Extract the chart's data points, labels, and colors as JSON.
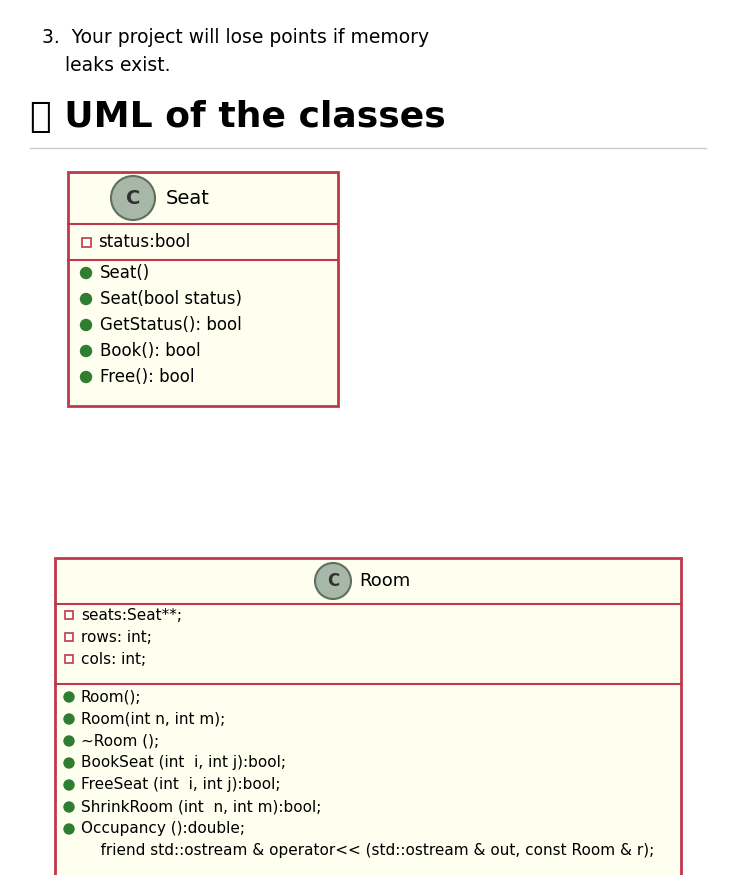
{
  "bg_color": "#ffffff",
  "box_bg": "#fffff0",
  "box_border": "#c0384b",
  "circle_bg": "#a8b8a8",
  "circle_border": "#607060",
  "attr_square_color": "#c0384b",
  "method_dot_color": "#2e7d32",
  "font_family": "DejaVu Sans",
  "header_text_line1": "3.  Your project will lose points if memory",
  "header_text_line2": "    leaks exist.",
  "section_title": "⛓ UML of the classes",
  "seat": {
    "name": "Seat",
    "attributes": [
      "status:bool"
    ],
    "methods": [
      "Seat()",
      "Seat(bool status)",
      "GetStatus(): bool",
      "Book(): bool",
      "Free(): bool"
    ]
  },
  "room": {
    "name": "Room",
    "attributes": [
      "seats:Seat**;",
      "rows: int;",
      "cols: int;"
    ],
    "methods": [
      "Room();",
      "Room(int n, int m);",
      "~Room ();",
      "BookSeat (int  i, int j):bool;",
      "FreeSeat (int  i, int j):bool;",
      "ShrinkRoom (int  n, int m):bool;",
      "Occupancy ():double;"
    ],
    "friend_line": "    friend std::ostream & operator<< (std::ostream & out, const Room & r);"
  }
}
